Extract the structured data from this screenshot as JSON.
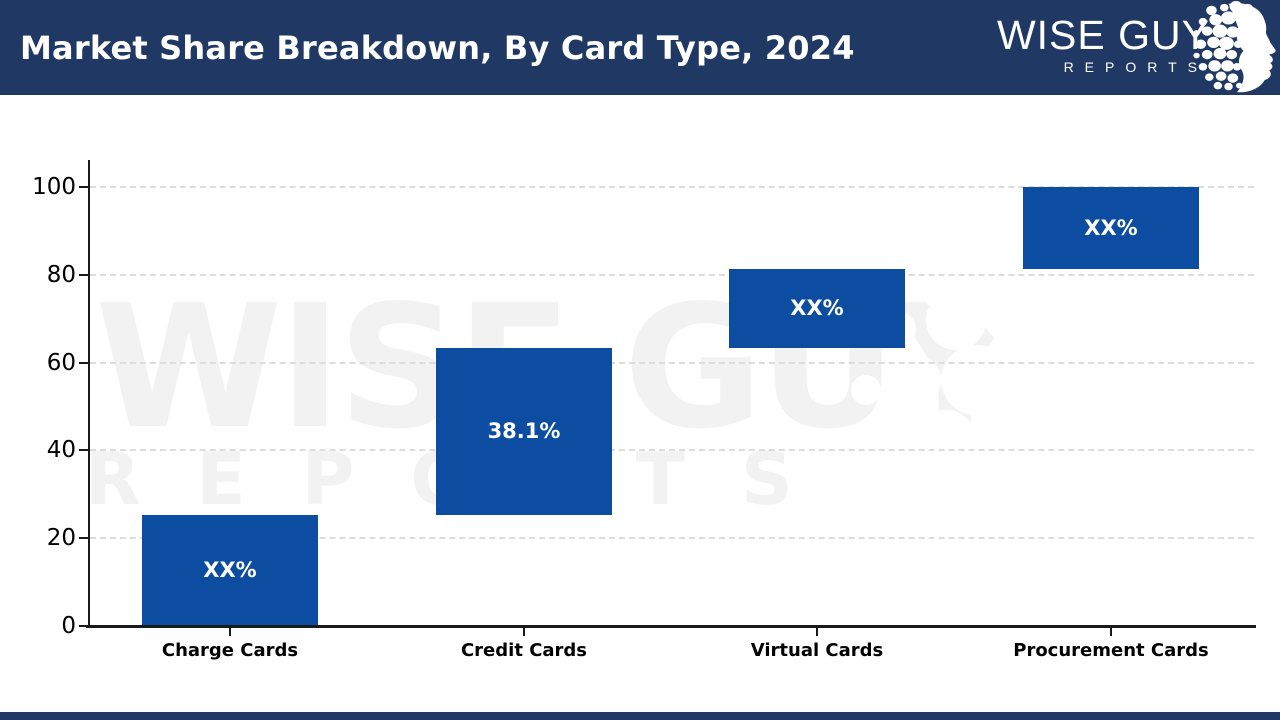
{
  "header": {
    "title": "Market Share Breakdown, By Card Type, 2024",
    "logo": {
      "name": "WISE GUY",
      "tagline": "REPORTS"
    }
  },
  "watermark": {
    "line1": "WISE GUY",
    "line2": "REPORTS"
  },
  "colors": {
    "navy": "#1f3864",
    "bar_blue": "#0c4da2",
    "gridline": "#dcdcdc",
    "watermark": "#f2f2f2",
    "axis": "#1a1a1a"
  },
  "chart_data": {
    "type": "bar",
    "subtype": "floating-segment-waterfall",
    "title": "Market Share Breakdown, By Card Type, 2024",
    "xlabel": "",
    "ylabel": "",
    "categories": [
      "Charge Cards",
      "Credit Cards",
      "Virtual Cards",
      "Procurement Cards"
    ],
    "bars": [
      {
        "category": "Charge Cards",
        "start": 0,
        "end": 25.3,
        "value_label": "XX%"
      },
      {
        "category": "Credit Cards",
        "start": 25.3,
        "end": 63.4,
        "value_label": "38.1%"
      },
      {
        "category": "Virtual Cards",
        "start": 63.4,
        "end": 81.3,
        "value_label": "XX%"
      },
      {
        "category": "Procurement Cards",
        "start": 81.3,
        "end": 100,
        "value_label": "XX%"
      }
    ],
    "yticks": [
      0,
      20,
      40,
      60,
      80,
      100
    ],
    "ylim": [
      0,
      106
    ],
    "grid": "dashed-horizontal-lightgray",
    "legend": false,
    "bar_color": "#0c4da2",
    "label_color": "#ffffff"
  }
}
